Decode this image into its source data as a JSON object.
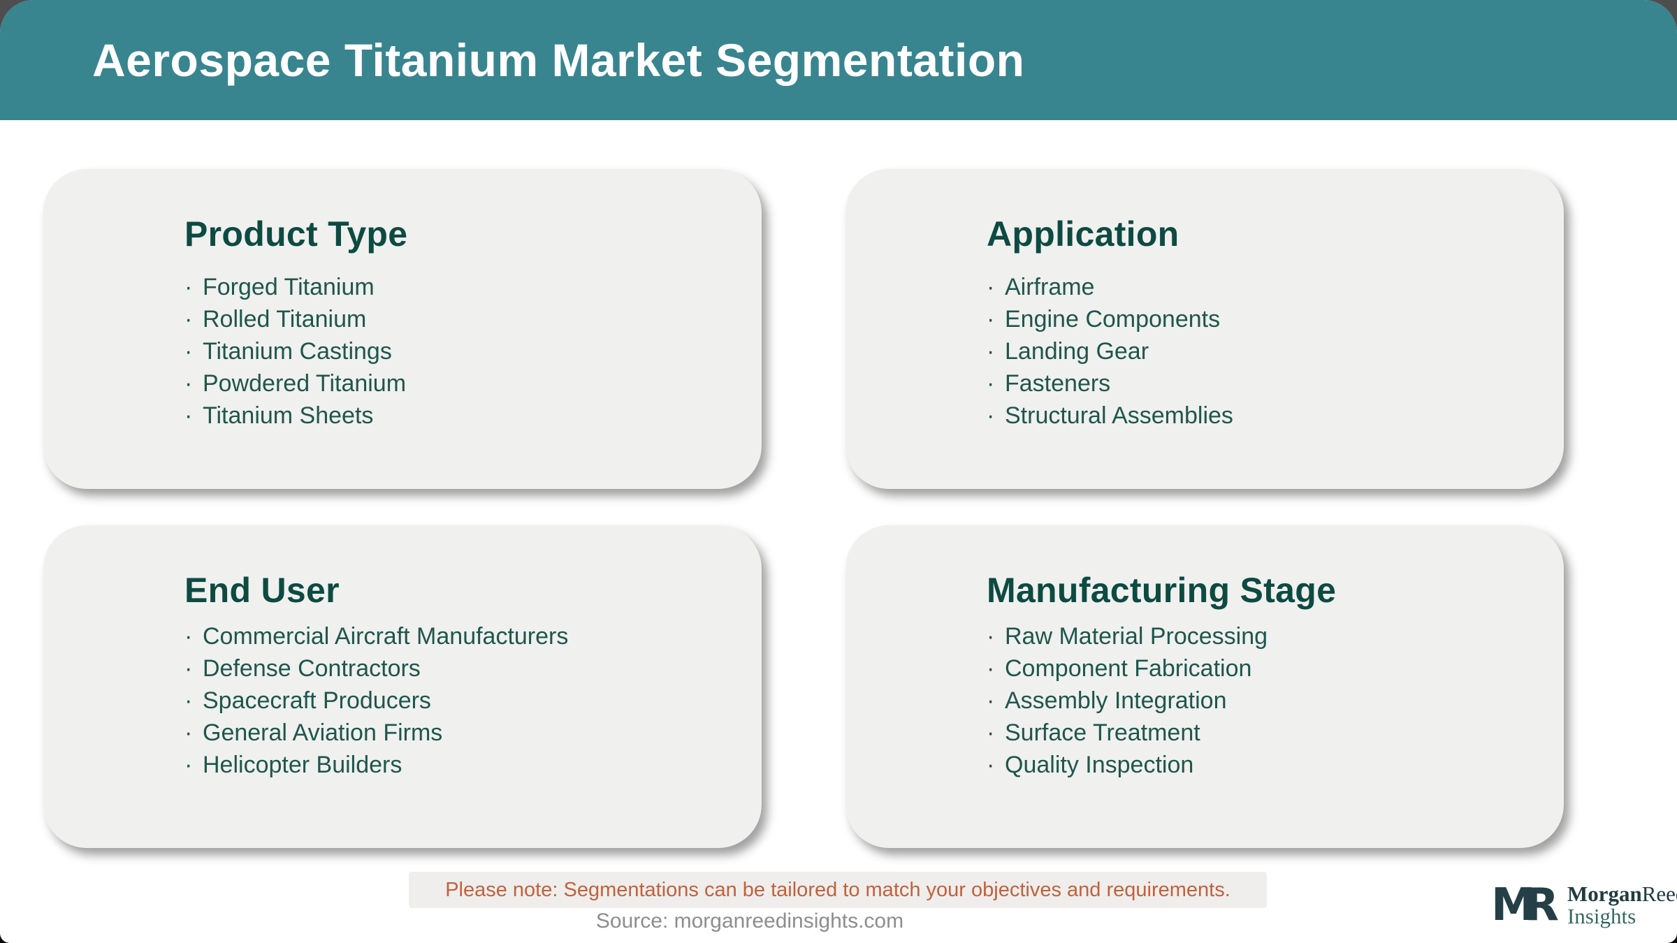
{
  "header": {
    "title": "Aerospace Titanium Market Segmentation"
  },
  "cards": [
    {
      "title": "Product Type",
      "items": [
        "Forged Titanium",
        "Rolled Titanium",
        "Titanium Castings",
        "Powdered Titanium",
        "Titanium Sheets"
      ]
    },
    {
      "title": "Application",
      "items": [
        "Airframe",
        "Engine Components",
        "Landing Gear",
        "Fasteners",
        "Structural Assemblies"
      ]
    },
    {
      "title": "End User",
      "items": [
        "Commercial Aircraft Manufacturers",
        "Defense Contractors",
        "Spacecraft Producers",
        "General Aviation Firms",
        "Helicopter Builders"
      ]
    },
    {
      "title": "Manufacturing Stage",
      "items": [
        "Raw Material Processing",
        "Component Fabrication",
        "Assembly Integration",
        "Surface Treatment",
        "Quality Inspection"
      ]
    }
  ],
  "footer": {
    "note": "Please note: Segmentations can be tailored to match your objectives and requirements.",
    "source": "Source: morganreedinsights.com"
  },
  "logo": {
    "monogram_m": "M",
    "monogram_r": "R",
    "name_bold": "Morgan",
    "name_regular": "Reed",
    "tagline": "Insights"
  },
  "ui": {
    "bullet": "·"
  },
  "colors": {
    "header_teal": "#388590",
    "title_green": "#0d4a42",
    "list_green": "#1e564c",
    "note_orange": "#c2613a",
    "card_bg": "#f0f0ef",
    "corner_gray": "#4e4e4e",
    "corner_black": "#0b0b0b",
    "source_gray": "#8d8d8d",
    "logo_dark": "#213c40",
    "logo_teal": "#35685f"
  }
}
